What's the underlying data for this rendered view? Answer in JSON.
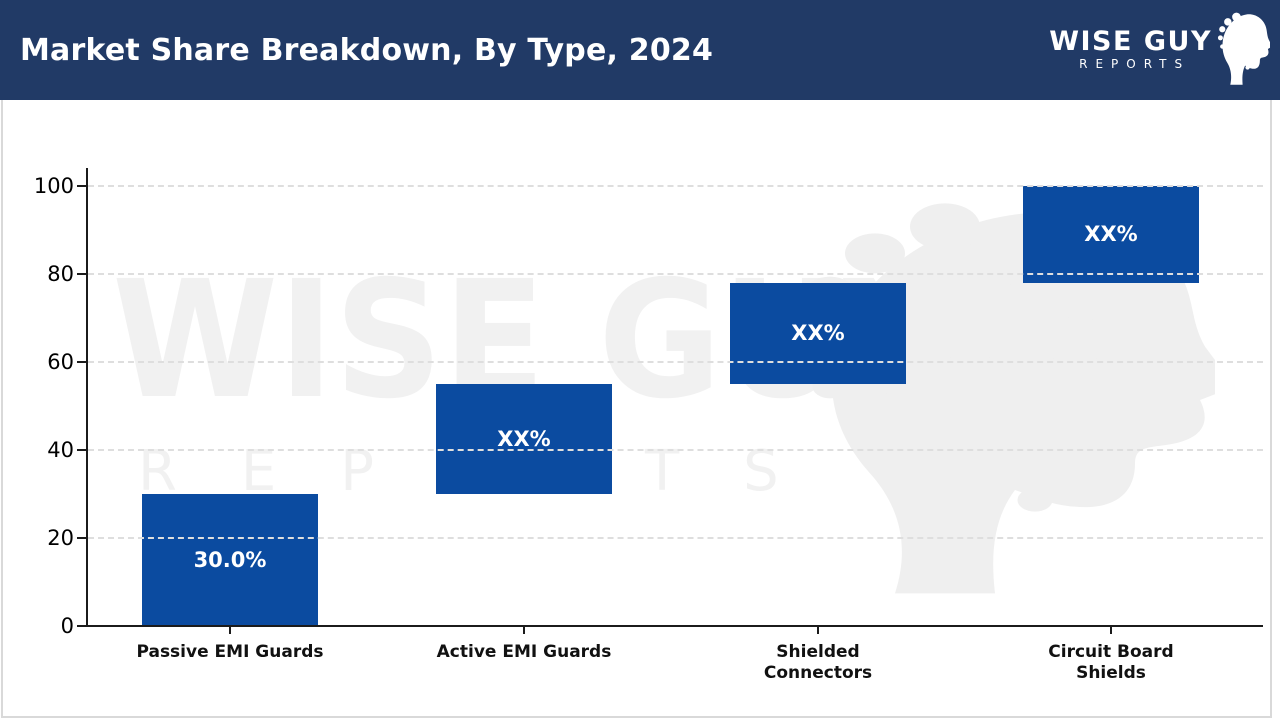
{
  "header": {
    "title": "Market Share Breakdown, By Type, 2024",
    "logo": {
      "line1": "WISE GUY",
      "line2": "REPORTS"
    }
  },
  "watermark": {
    "line1": "WISE GUY",
    "line2": "REPORTS"
  },
  "colors": {
    "header_bg": "#213a66",
    "bar": "#0b4ba0",
    "grid": "#dedede",
    "axis": "#1b1b1b",
    "watermark": "#f1f1f1"
  },
  "chart_data": {
    "type": "bar",
    "subtype": "floating-segment-waterfall",
    "title": "Market Share Breakdown, By Type, 2024",
    "categories": [
      "Passive EMI Guards",
      "Active EMI Guards",
      "Shielded\nConnectors",
      "Circuit Board\nShields"
    ],
    "bars": [
      {
        "category": "Passive EMI Guards",
        "start": 0,
        "end": 30,
        "label": "30.0%"
      },
      {
        "category": "Active EMI Guards",
        "start": 30,
        "end": 55,
        "label": "XX%"
      },
      {
        "category": "Shielded Connectors",
        "start": 55,
        "end": 78,
        "label": "XX%"
      },
      {
        "category": "Circuit Board Shields",
        "start": 78,
        "end": 100,
        "label": "XX%"
      }
    ],
    "ylim": [
      0,
      100
    ],
    "yticks": [
      0,
      20,
      40,
      60,
      80,
      100
    ],
    "xlabel": "",
    "ylabel": "",
    "grid": "horizontal-dashed",
    "legend": "none",
    "bar_color": "#0b4ba0",
    "bar_label_color": "#ffffff"
  }
}
